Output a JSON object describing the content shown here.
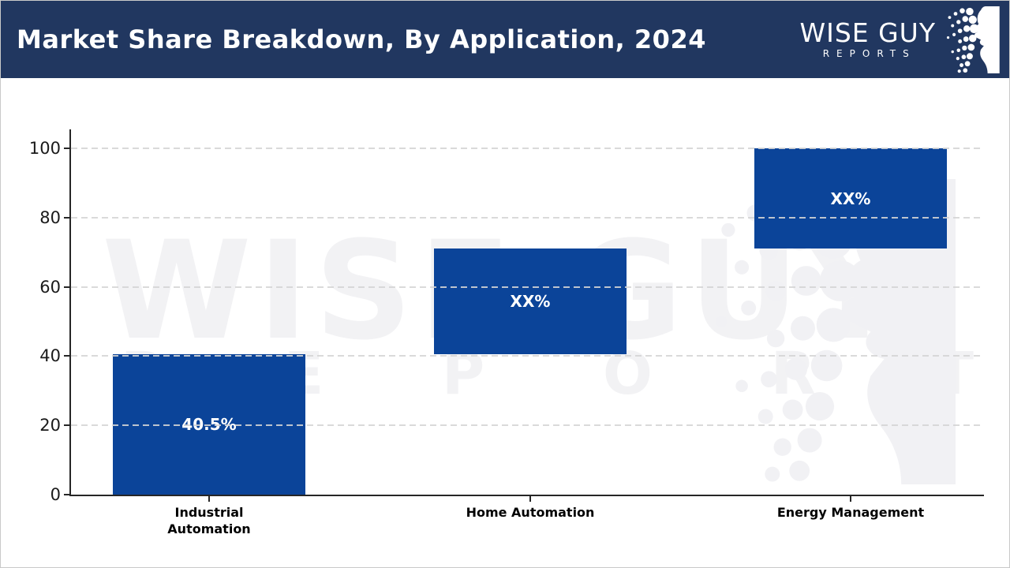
{
  "header": {
    "title": "Market Share Breakdown, By Application, 2024",
    "bg_color": "#213760",
    "logo": {
      "line1": "WISE GUY",
      "line2": "REPORTS"
    }
  },
  "watermark": {
    "line1": "WISE GUY",
    "line2": "R E P O R T S"
  },
  "chart_data": {
    "type": "bar",
    "variant": "waterfall-floating-bars",
    "title": "Market Share Breakdown, By Application, 2024",
    "categories": [
      "Industrial\nAutomation",
      "Home Automation",
      "Energy Management"
    ],
    "segments": [
      {
        "category": "Industrial Automation",
        "start": 0,
        "end": 40.5,
        "label": "40.5%"
      },
      {
        "category": "Home Automation",
        "start": 40.5,
        "end": 71,
        "label": "XX%"
      },
      {
        "category": "Energy Management",
        "start": 71,
        "end": 100,
        "label": "XX%"
      }
    ],
    "y_ticks": [
      0,
      20,
      40,
      60,
      80,
      100
    ],
    "ylim": [
      0,
      105.5
    ],
    "xlabel": "",
    "ylabel": "",
    "bar_color": "#0b4499",
    "grid": "horizontal dashed, drawn above bars",
    "legend": "none"
  }
}
